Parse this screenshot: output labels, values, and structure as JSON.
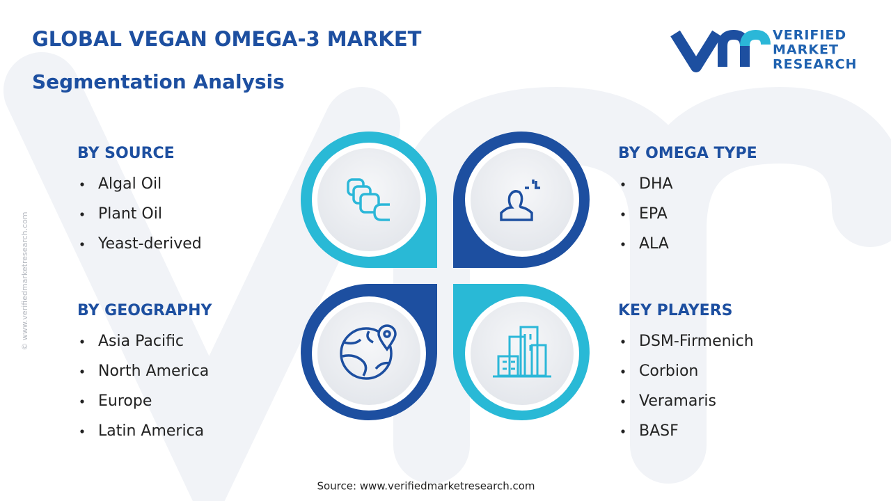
{
  "header": {
    "title": "GLOBAL VEGAN OMEGA-3 MARKET",
    "subtitle": "Segmentation Analysis"
  },
  "logo": {
    "line1": "VERIFIED",
    "line2": "MARKET",
    "line3": "RESEARCH"
  },
  "segments": [
    {
      "title": "BY SOURCE",
      "items": [
        "Algal Oil",
        "Plant Oil",
        "Yeast-derived"
      ]
    },
    {
      "title": "BY OMEGA TYPE",
      "items": [
        "DHA",
        "EPA",
        "ALA"
      ]
    },
    {
      "title": "BY GEOGRAPHY",
      "items": [
        "Asia Pacific",
        "North America",
        "Europe",
        "Latin America"
      ]
    },
    {
      "title": "KEY PLAYERS",
      "items": [
        "DSM-Firmenich",
        "Corbion",
        "Veramaris",
        "BASF"
      ]
    }
  ],
  "source": "Source: www.verifiedmarketresearch.com",
  "side_text": "© www.verifiedmarketresearch.com"
}
